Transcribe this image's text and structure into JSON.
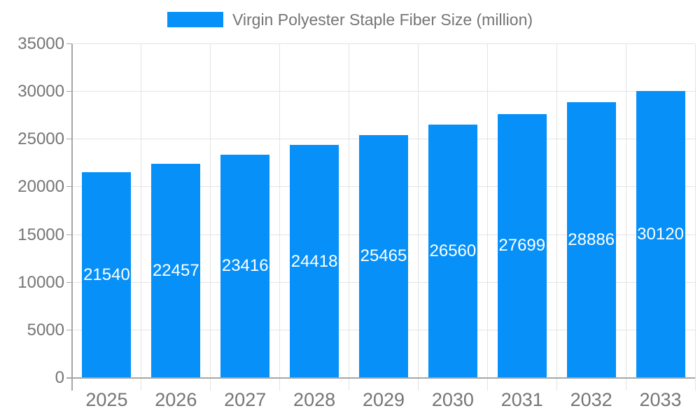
{
  "legend": {
    "position": "top"
  },
  "chart_data": {
    "type": "bar",
    "title": "Virgin Polyester Staple Fiber Size (million)",
    "categories": [
      "2025",
      "2026",
      "2027",
      "2028",
      "2029",
      "2030",
      "2031",
      "2032",
      "2033"
    ],
    "values": [
      21540,
      22457,
      23416,
      24418,
      25465,
      26560,
      27699,
      28886,
      30120
    ],
    "xlabel": "",
    "ylabel": "",
    "ylim": [
      0,
      35000
    ],
    "yticks": [
      0,
      5000,
      10000,
      15000,
      20000,
      25000,
      30000,
      35000
    ],
    "grid": true,
    "legend_position": "top",
    "bar_labels_visible": true,
    "colors": {
      "bar": "#0690f8",
      "bar_label": "#ffffff",
      "grid": "#e3e3e3",
      "axis": "#a6a6a6",
      "tick_text": "#757575",
      "legend_text": "#757575"
    }
  }
}
